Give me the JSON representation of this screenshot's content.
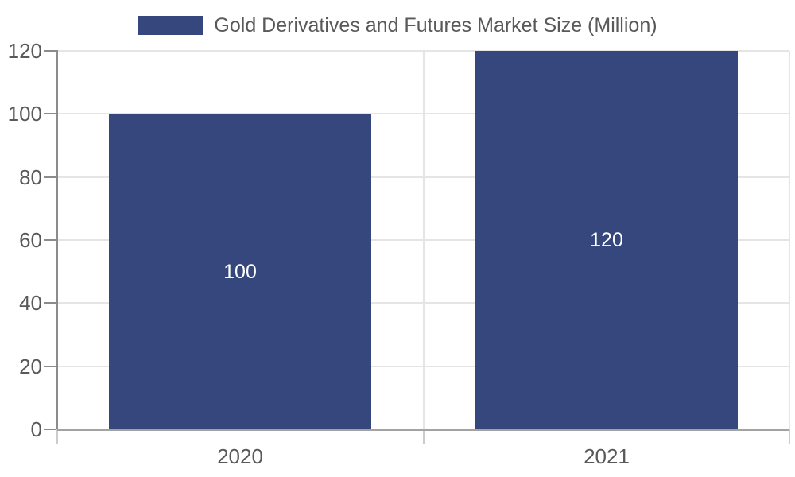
{
  "legend": {
    "label": "Gold Derivatives and Futures Market Size (Million)"
  },
  "chart_data": {
    "type": "bar",
    "title": "Gold Derivatives and Futures Market Size (Million)",
    "categories": [
      "2020",
      "2021"
    ],
    "series": [
      {
        "name": "Gold Derivatives and Futures Market Size (Million)",
        "values": [
          100,
          120
        ]
      }
    ],
    "data_labels": [
      "100",
      "120"
    ],
    "xlabel": "",
    "ylabel": "",
    "ylim": [
      0,
      120
    ],
    "y_ticks": [
      0,
      20,
      40,
      60,
      80,
      100,
      120
    ],
    "grid": true,
    "legend_position": "top-center",
    "colors": {
      "bar": "#36477d",
      "data_label": "#ffffff",
      "axis_text": "#595959",
      "grid_line": "#e5e5e6",
      "y_axis_line": "#8c8c8c",
      "x_axis_line": "#a3a3a3",
      "y_tick_line": "#8c8c8c",
      "x_tick_line": "#caccd2",
      "background": "#ffffff"
    }
  }
}
